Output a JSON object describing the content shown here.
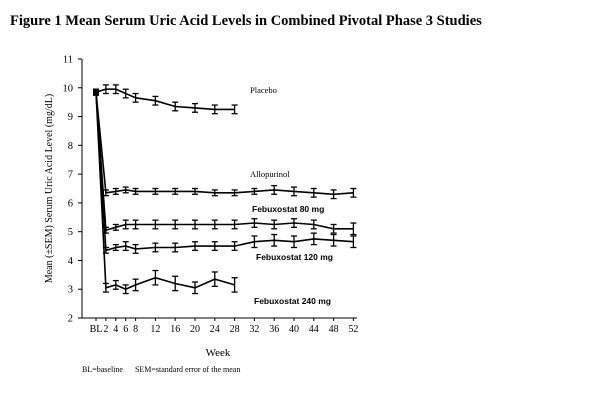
{
  "figure_title": "Figure 1 Mean Serum Uric Acid Levels in Combined Pivotal Phase 3 Studies",
  "footnotes": [
    "BL=baseline",
    "SEM=standard error of the mean"
  ],
  "chart_data": {
    "type": "line",
    "title": "",
    "xlabel": "Week",
    "ylabel": "Mean (±SEM) Serum Uric Acid Level (mg/dL)",
    "ylim": [
      2,
      11
    ],
    "yticks": [
      2,
      3,
      4,
      5,
      6,
      7,
      8,
      9,
      10,
      11
    ],
    "xlim": [
      0,
      53
    ],
    "xtick_labels": [
      "BL",
      "2",
      "4",
      "6",
      "8",
      "12",
      "16",
      "20",
      "24",
      "28",
      "32",
      "36",
      "40",
      "44",
      "48",
      "52"
    ],
    "grid": false,
    "legend": "labels placed next to each series on the right",
    "series": [
      {
        "name": "Placebo",
        "x": [
          "BL",
          "2",
          "4",
          "6",
          "8",
          "12",
          "16",
          "20",
          "24",
          "28"
        ],
        "values": [
          9.85,
          9.95,
          9.95,
          9.8,
          9.65,
          9.55,
          9.35,
          9.3,
          9.25,
          9.25
        ],
        "sem": [
          0.1,
          0.15,
          0.15,
          0.15,
          0.15,
          0.15,
          0.15,
          0.15,
          0.15,
          0.15
        ]
      },
      {
        "name": "Allopurinol",
        "x": [
          "BL",
          "2",
          "4",
          "6",
          "8",
          "12",
          "16",
          "20",
          "24",
          "28",
          "32",
          "36",
          "40",
          "44",
          "48",
          "52"
        ],
        "values": [
          9.85,
          6.35,
          6.4,
          6.45,
          6.4,
          6.4,
          6.4,
          6.4,
          6.35,
          6.35,
          6.4,
          6.45,
          6.4,
          6.35,
          6.3,
          6.35
        ],
        "sem": [
          0.1,
          0.1,
          0.1,
          0.1,
          0.1,
          0.1,
          0.1,
          0.1,
          0.1,
          0.1,
          0.1,
          0.15,
          0.15,
          0.15,
          0.15,
          0.15
        ]
      },
      {
        "name": "Febuxostat 80 mg",
        "x": [
          "BL",
          "2",
          "4",
          "6",
          "8",
          "12",
          "16",
          "20",
          "24",
          "28",
          "32",
          "36",
          "40",
          "44",
          "48",
          "52"
        ],
        "values": [
          9.85,
          5.05,
          5.15,
          5.25,
          5.25,
          5.25,
          5.25,
          5.25,
          5.25,
          5.25,
          5.3,
          5.25,
          5.3,
          5.25,
          5.1,
          5.1
        ],
        "sem": [
          0.1,
          0.1,
          0.1,
          0.15,
          0.15,
          0.15,
          0.15,
          0.15,
          0.15,
          0.15,
          0.15,
          0.15,
          0.15,
          0.15,
          0.15,
          0.2
        ]
      },
      {
        "name": "Febuxostat 120 mg",
        "x": [
          "BL",
          "2",
          "4",
          "6",
          "8",
          "12",
          "16",
          "20",
          "24",
          "28",
          "32",
          "36",
          "40",
          "44",
          "48",
          "52"
        ],
        "values": [
          9.85,
          4.35,
          4.45,
          4.5,
          4.4,
          4.45,
          4.45,
          4.5,
          4.5,
          4.5,
          4.65,
          4.7,
          4.65,
          4.75,
          4.7,
          4.65
        ],
        "sem": [
          0.1,
          0.1,
          0.1,
          0.15,
          0.15,
          0.15,
          0.15,
          0.15,
          0.15,
          0.15,
          0.2,
          0.2,
          0.2,
          0.2,
          0.2,
          0.2
        ]
      },
      {
        "name": "Febuxostat 240 mg",
        "x": [
          "BL",
          "2",
          "4",
          "6",
          "8",
          "12",
          "16",
          "20",
          "24",
          "28"
        ],
        "values": [
          9.85,
          3.05,
          3.15,
          3.0,
          3.15,
          3.4,
          3.2,
          3.05,
          3.35,
          3.15
        ],
        "sem": [
          0.1,
          0.15,
          0.15,
          0.15,
          0.2,
          0.25,
          0.25,
          0.2,
          0.25,
          0.25
        ]
      }
    ]
  }
}
